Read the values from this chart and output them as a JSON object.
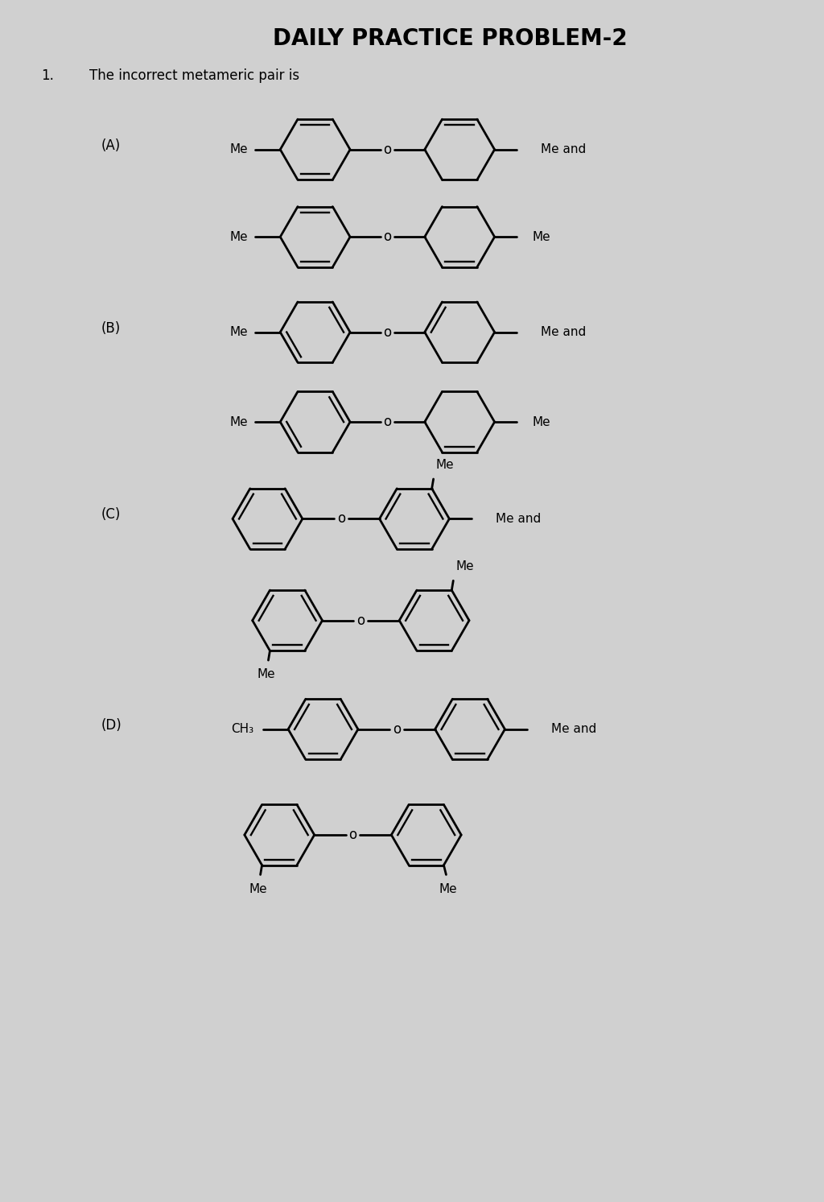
{
  "title": "DAILY PRACTICE PROBLEM-2",
  "question_num": "1.",
  "question_text": "The incorrect metameric pair is",
  "bg_color": "#d0d0d0",
  "text_color": "#1a1a1a",
  "lw": 2.0,
  "r_hex": 0.44,
  "fs_title": 20,
  "fs_label": 12,
  "fs_option": 12,
  "fs_me": 11
}
